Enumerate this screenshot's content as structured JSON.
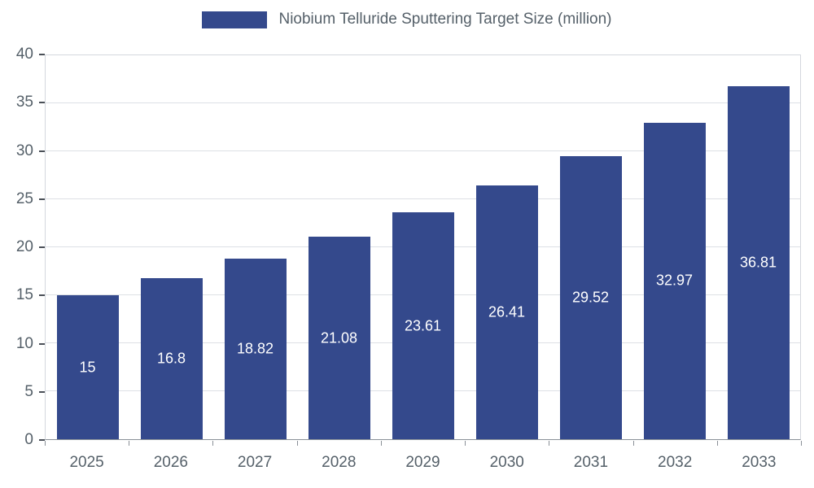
{
  "chart_data": {
    "type": "bar",
    "title": "Niobium Telluride Sputtering Target Size (million)",
    "categories": [
      "2025",
      "2026",
      "2027",
      "2028",
      "2029",
      "2030",
      "2031",
      "2032",
      "2033"
    ],
    "values": [
      15,
      16.8,
      18.82,
      21.08,
      23.61,
      26.41,
      29.52,
      32.97,
      36.81
    ],
    "value_labels": [
      "15",
      "16.8",
      "18.82",
      "21.08",
      "23.61",
      "26.41",
      "29.52",
      "32.97",
      "36.81"
    ],
    "ylim": [
      0,
      40
    ],
    "yticks": [
      0,
      5,
      10,
      15,
      20,
      25,
      30,
      35,
      40
    ],
    "bar_color": "#34498c",
    "value_label_color": "#ffffff",
    "axis_label_color": "#556069",
    "gridline_color": "#dde0e5",
    "grid": true,
    "legend_position": "top"
  }
}
